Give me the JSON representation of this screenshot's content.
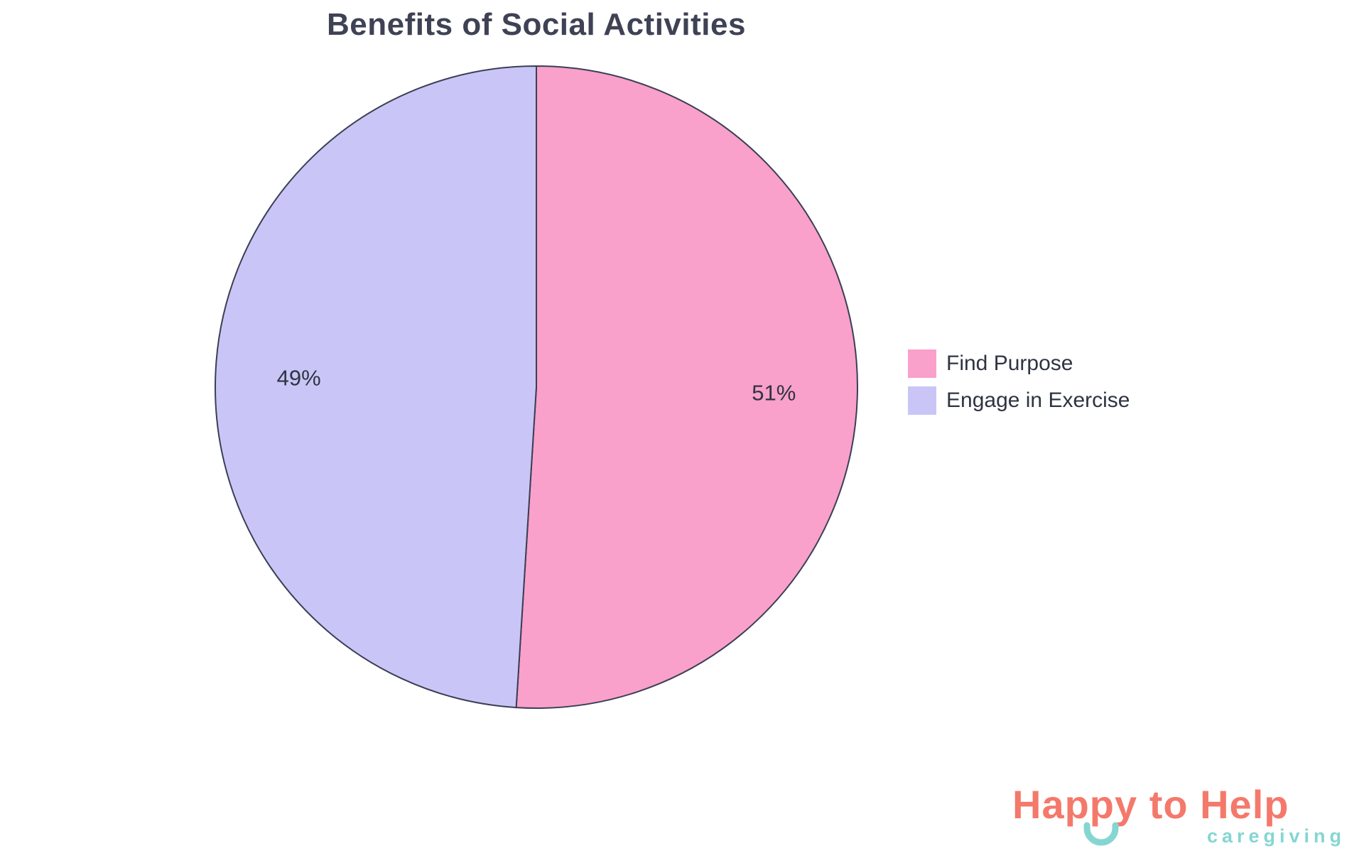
{
  "chart_data": {
    "type": "pie",
    "title": "Benefits of Social Activities",
    "labels": [
      "Find Purpose",
      "Engage in Exercise"
    ],
    "values": [
      51,
      49
    ],
    "slice_labels": [
      "51%",
      "49%"
    ],
    "colors": [
      "#f9a0cb",
      "#c9c6f7"
    ],
    "border_color": "#3b3f54",
    "label_color": "#2f3442",
    "legend_position": "right",
    "start_angle_deg": 0,
    "direction": "clockwise"
  },
  "legend": {
    "items": [
      {
        "label": "Find Purpose",
        "color": "#f9a0cb"
      },
      {
        "label": "Engage in Exercise",
        "color": "#c9c6f7"
      }
    ]
  },
  "logo": {
    "wordmark": "Happy to Help",
    "tagline": "caregiving",
    "wordmark_color": "#f4796b",
    "tagline_color": "#85d6d2",
    "smile_icon_color": "#85d6d2"
  }
}
